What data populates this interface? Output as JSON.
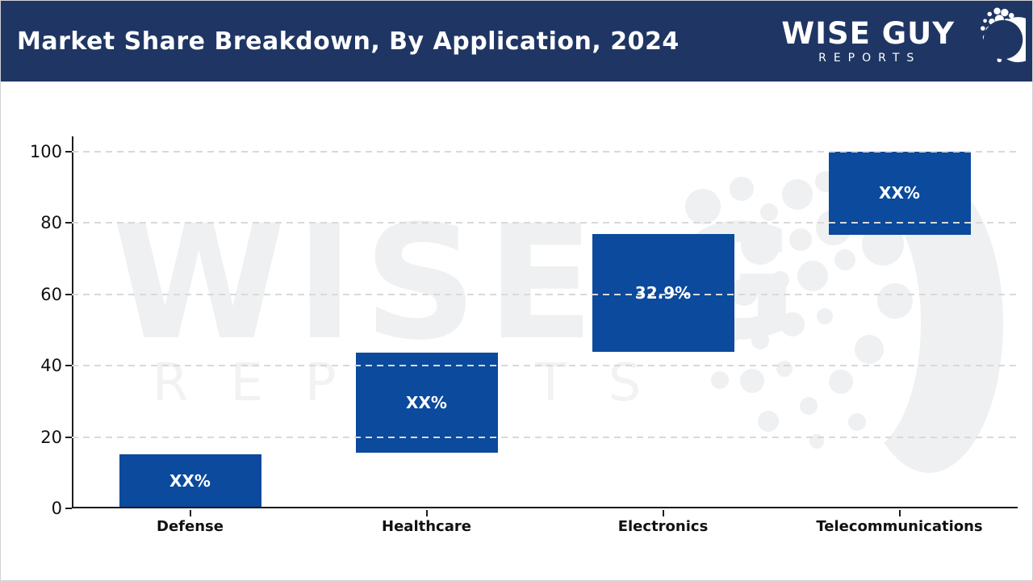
{
  "header": {
    "title": "Market Share Breakdown, By Application, 2024",
    "logo": {
      "name": "WISE GUY",
      "sub": "REPORTS"
    }
  },
  "watermark": {
    "main": "WISE GU",
    "sub": "REPORTS"
  },
  "chart_data": {
    "type": "bar",
    "variant": "floating-waterfall",
    "title": "Market Share Breakdown, By Application, 2024",
    "categories": [
      "Defense",
      "Healthcare",
      "Electronics",
      "Telecommunications"
    ],
    "segments": [
      {
        "category": "Defense",
        "start": 0,
        "end": 15.2,
        "label": "XX%"
      },
      {
        "category": "Healthcare",
        "start": 15.5,
        "end": 43.6,
        "label": "XX%"
      },
      {
        "category": "Electronics",
        "start": 44,
        "end": 76.9,
        "label": "32.9%"
      },
      {
        "category": "Telecommunications",
        "start": 76.7,
        "end": 100,
        "label": "XX%"
      }
    ],
    "ylim": [
      0,
      100
    ],
    "yticks": [
      0,
      20,
      40,
      60,
      80,
      100
    ],
    "grid": "horizontal-dashed",
    "legend": "none",
    "bar_color": "#0b4a9c",
    "bar_label_color": "#ffffff"
  },
  "colors": {
    "header_bg": "#1f3664",
    "title_text": "#ffffff",
    "axis": "#1c1c1c",
    "grid": "#d9d9d9",
    "watermark": "#eff0f2",
    "page_bg": "#ffffff"
  }
}
